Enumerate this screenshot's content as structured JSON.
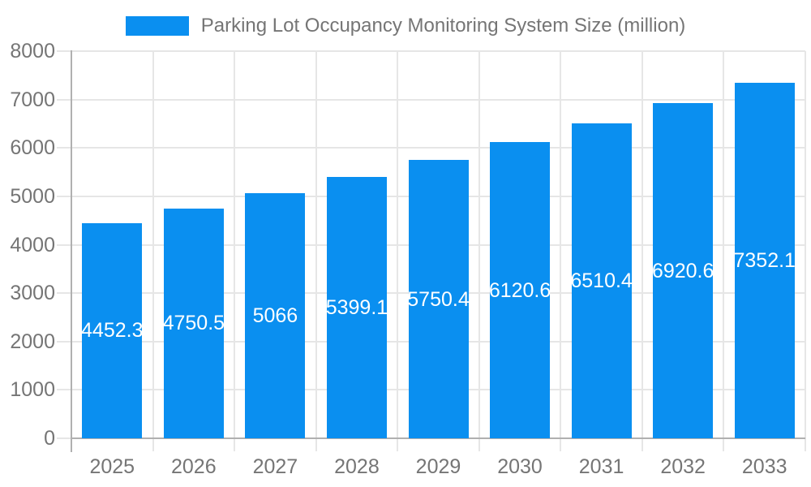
{
  "legend": {
    "label": "Parking Lot Occupancy Monitoring System Size (million)"
  },
  "chart_data": {
    "type": "bar",
    "title": "Parking Lot Occupancy Monitoring System Size (million)",
    "categories": [
      "2025",
      "2026",
      "2027",
      "2028",
      "2029",
      "2030",
      "2031",
      "2032",
      "2033"
    ],
    "values": [
      4452.3,
      4750.5,
      5066,
      5399.1,
      5750.4,
      6120.6,
      6510.4,
      6920.6,
      7352.1
    ],
    "value_labels": [
      "4452.3",
      "4750.5",
      "5066",
      "5399.1",
      "5750.4",
      "6120.6",
      "6510.4",
      "6920.6",
      "7352.1"
    ],
    "xlabel": "",
    "ylabel": "",
    "ylim": [
      0,
      8000
    ],
    "yticks": [
      0,
      1000,
      2000,
      3000,
      4000,
      5000,
      6000,
      7000,
      8000
    ],
    "grid": true,
    "legend_position": "top",
    "colors": {
      "bar": "#0a8ff0",
      "value_text": "#ffffff",
      "axis_text": "#757575",
      "grid": "#e6e6e6",
      "axis_line": "#b0b0b0"
    }
  }
}
